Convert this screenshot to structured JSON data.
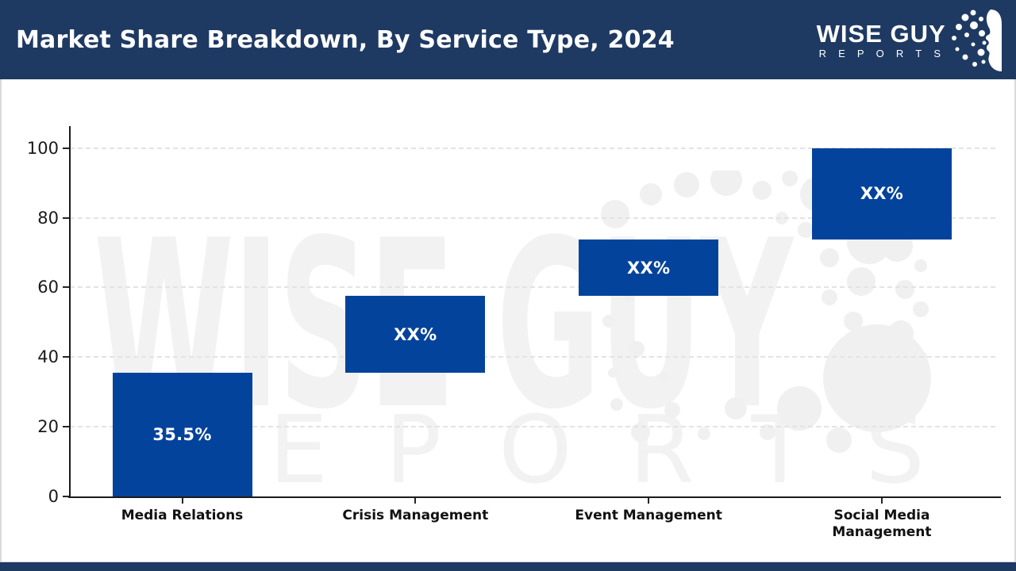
{
  "header": {
    "title": "Market Share Breakdown, By Service Type, 2024",
    "logo": {
      "wordmark": "WISE GUY",
      "subtext": "REPORTS"
    }
  },
  "watermark": {
    "line1": "WISE GUY",
    "line2": "REPORTS"
  },
  "colors": {
    "header_bg": "#1e3a63",
    "footer_bg": "#1e3a63",
    "bar": "#04439c",
    "bar_label": "#ffffff",
    "grid": "#e3e3e3",
    "axis": "#1a1a1a",
    "watermark": "#f2f2f2",
    "panel_border": "#d9d9d9"
  },
  "chart_data": {
    "type": "waterfall-bar",
    "title": "Market Share Breakdown, By Service Type, 2024",
    "categories": [
      "Media Relations",
      "Crisis Management",
      "Event Management",
      "Social Media Management"
    ],
    "segments": [
      {
        "category": "Media Relations",
        "start": 0,
        "end": 35.5,
        "label": "35.5%"
      },
      {
        "category": "Crisis Management",
        "start": 35.5,
        "end": 57.5,
        "label": "XX%"
      },
      {
        "category": "Event Management",
        "start": 57.5,
        "end": 73.7,
        "label": "XX%"
      },
      {
        "category": "Social Media Management",
        "start": 73.7,
        "end": 100,
        "label": "XX%"
      }
    ],
    "yticks": [
      0,
      20,
      40,
      60,
      80,
      100
    ],
    "ylim": [
      0,
      106
    ],
    "grid": "horizontal-dashed",
    "legend": "none",
    "bar_color": "#04439c",
    "value_label_color": "#ffffff"
  }
}
